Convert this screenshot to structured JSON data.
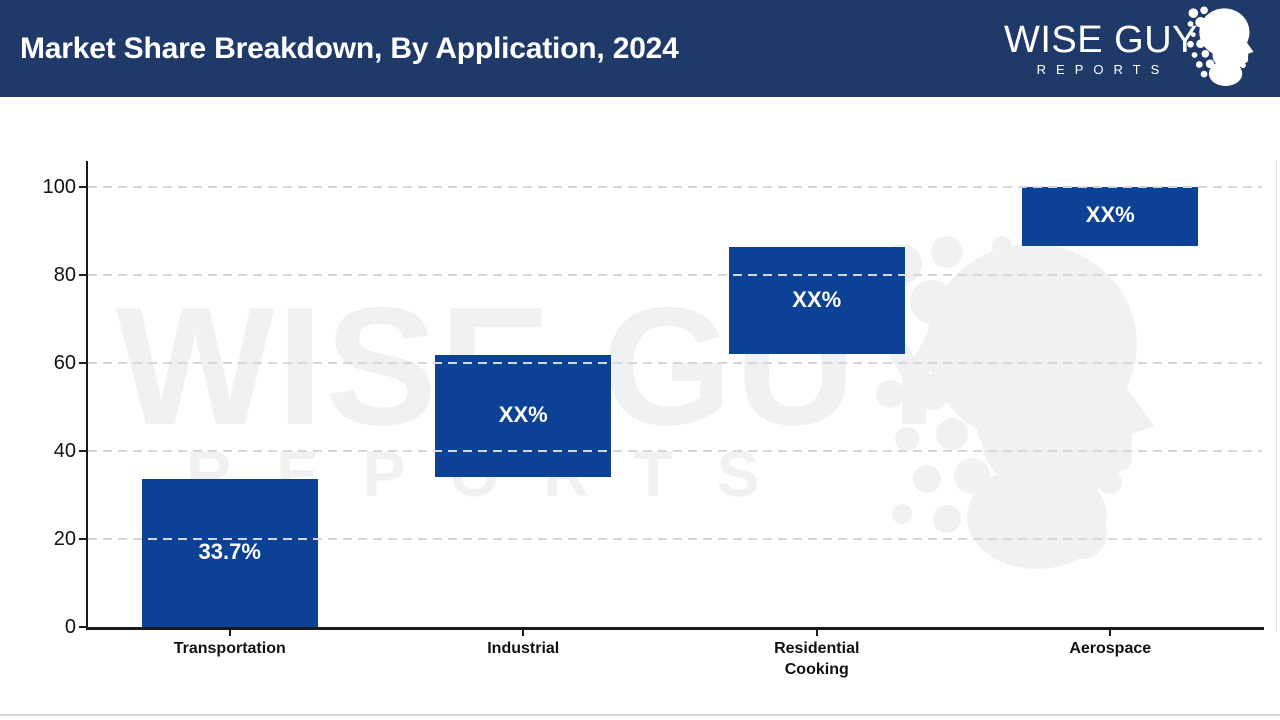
{
  "header": {
    "title": "Market Share Breakdown, By Application, 2024",
    "bg_color": "#1f3a68",
    "logo": {
      "line1": "WISE GUY",
      "line2": "REPORTS"
    }
  },
  "watermark": {
    "line1": "WISE GUY",
    "line2": "REPORTS"
  },
  "chart_data": {
    "type": "bar",
    "subtype": "waterfall",
    "title": "Market Share Breakdown, By Application, 2024",
    "categories": [
      "Transportation",
      "Industrial",
      "Residential\nCooking",
      "Aerospace"
    ],
    "segments": [
      {
        "category": "Transportation",
        "start": 0,
        "end": 33.7,
        "label": "33.7%"
      },
      {
        "category": "Industrial",
        "start": 34,
        "end": 61.8,
        "label": "XX%"
      },
      {
        "category": "Residential Cooking",
        "start": 62,
        "end": 86.4,
        "label": "XX%"
      },
      {
        "category": "Aerospace",
        "start": 86.6,
        "end": 100,
        "label": "XX%"
      }
    ],
    "ylim": [
      0,
      100
    ],
    "yticks": [
      0,
      20,
      40,
      60,
      80,
      100
    ],
    "grid": "horizontal dashed, drawn over bars",
    "legend": "none",
    "bar_color": "#0c4196",
    "value_label_color": "#ffffff"
  }
}
